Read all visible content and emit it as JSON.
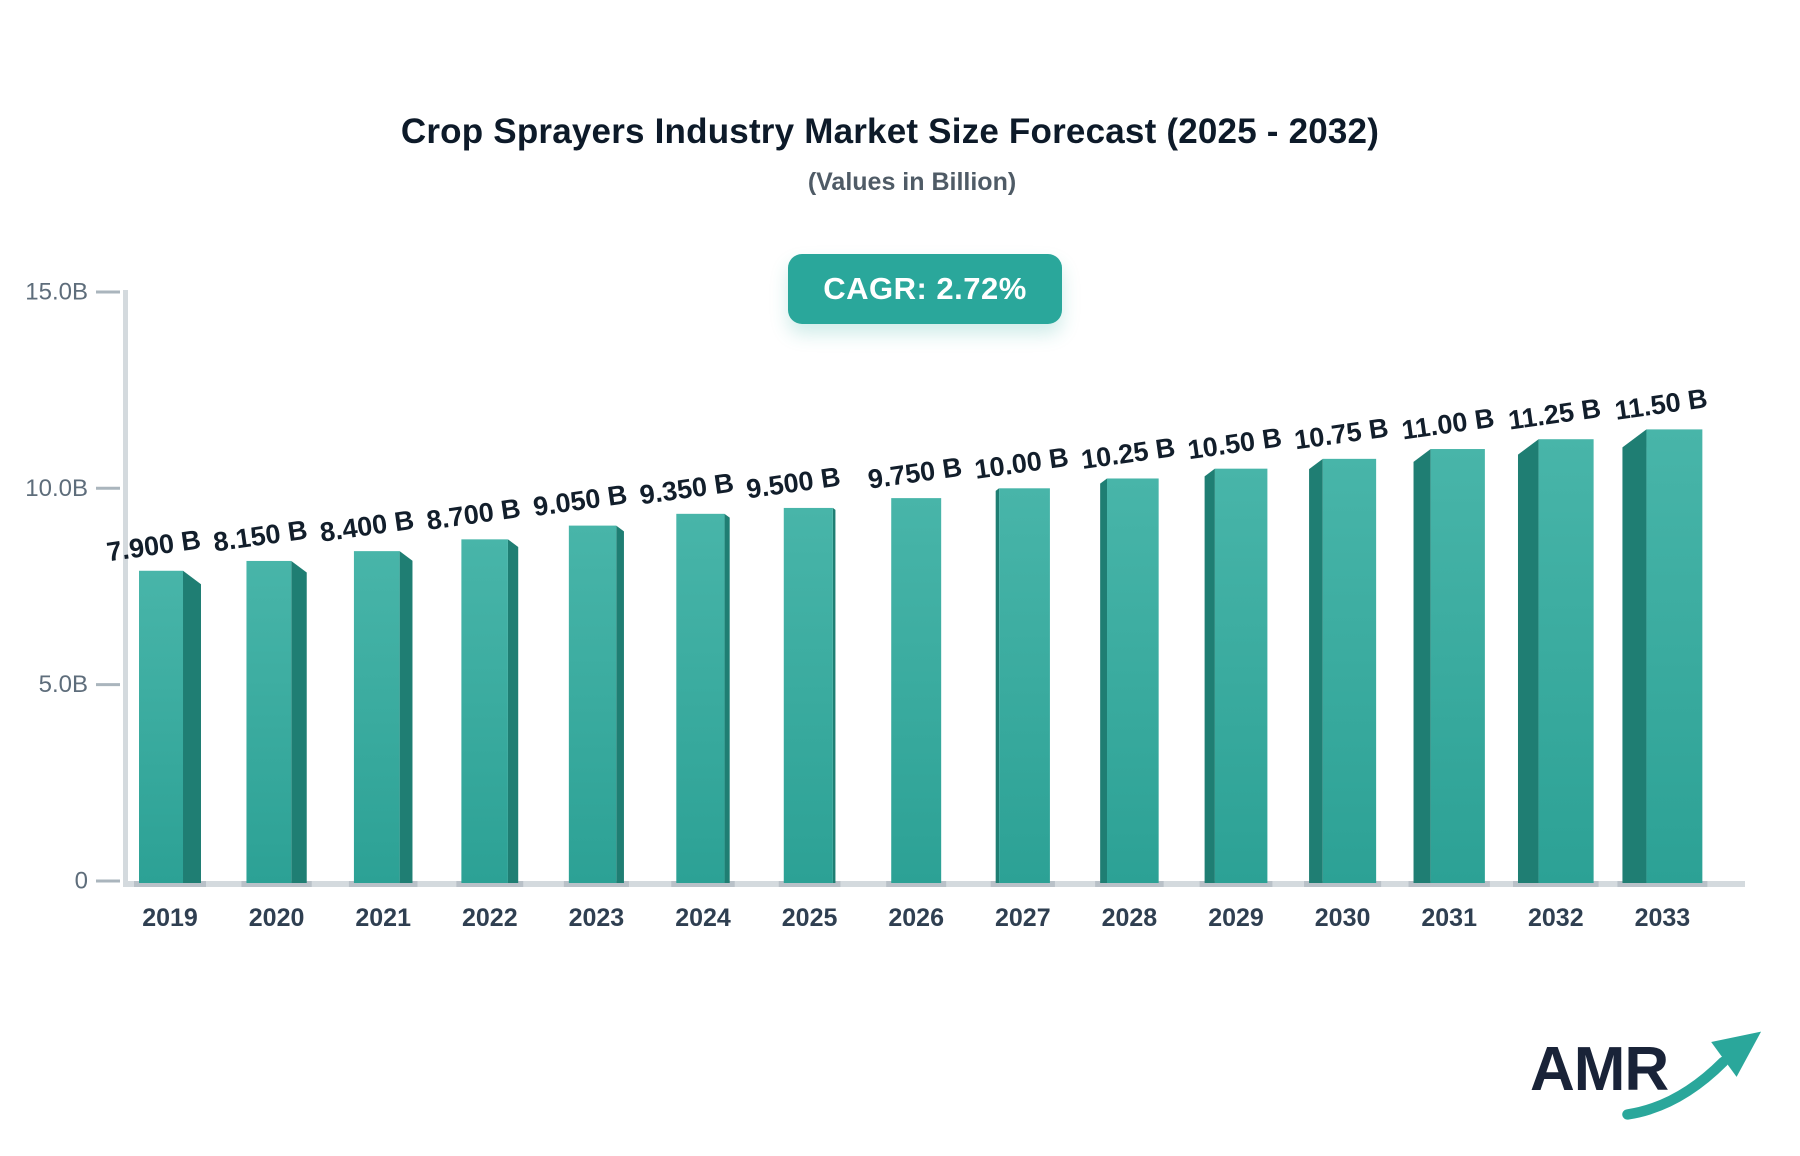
{
  "header": {
    "title": "Crop Sprayers Industry Market Size Forecast (2025 - 2032)",
    "subtitle": "(Values in Billion)",
    "cagr_badge": "CAGR: 2.72%"
  },
  "logo": {
    "text": "AMR"
  },
  "chart_data": {
    "type": "bar",
    "title": "Crop Sprayers Industry Market Size Forecast (2025 - 2032)",
    "subtitle": "(Values in Billion)",
    "annotation": "CAGR: 2.72%",
    "unit": "Billion",
    "categories": [
      "2019",
      "2020",
      "2021",
      "2022",
      "2023",
      "2024",
      "2025",
      "2026",
      "2027",
      "2028",
      "2029",
      "2030",
      "2031",
      "2032",
      "2033"
    ],
    "values": [
      7.9,
      8.15,
      8.4,
      8.7,
      9.05,
      9.35,
      9.5,
      9.75,
      10.0,
      10.25,
      10.5,
      10.75,
      11.0,
      11.25,
      11.5
    ],
    "value_labels": [
      "7.900 B",
      "8.150 B",
      "8.400 B",
      "8.700 B",
      "9.050 B",
      "9.350 B",
      "9.500 B",
      "9.750 B",
      "10.00 B",
      "10.25 B",
      "10.50 B",
      "10.75 B",
      "11.00 B",
      "11.25 B",
      "11.50 B"
    ],
    "ylim": [
      0,
      15
    ],
    "yticks": [
      {
        "value": 15,
        "label": "15.0B"
      },
      {
        "value": 10,
        "label": "10.0B"
      },
      {
        "value": 5,
        "label": "5.0B"
      },
      {
        "value": 0,
        "label": "0"
      }
    ],
    "grid": false,
    "legend": false,
    "bar_style": "3d-perspective",
    "colors": {
      "bar_face_top": "#48b5a9",
      "bar_face_bottom": "#2ca195",
      "bar_side": "#1f7e73",
      "bar_base_shadow": "#b9c1c8",
      "badge_background": "#2aa79b",
      "badge_text": "#ffffff",
      "axis_line": "#d4dade",
      "tick_text": "#5e6d7b",
      "tick_dash": "#aab5bd",
      "category_text": "#2f3f51",
      "value_text": "#121e2b",
      "title_text": "#0d1a29",
      "subtitle_text": "#4f5b66",
      "logo_text": "#192338",
      "logo_arrow": "#2aa79b"
    }
  }
}
